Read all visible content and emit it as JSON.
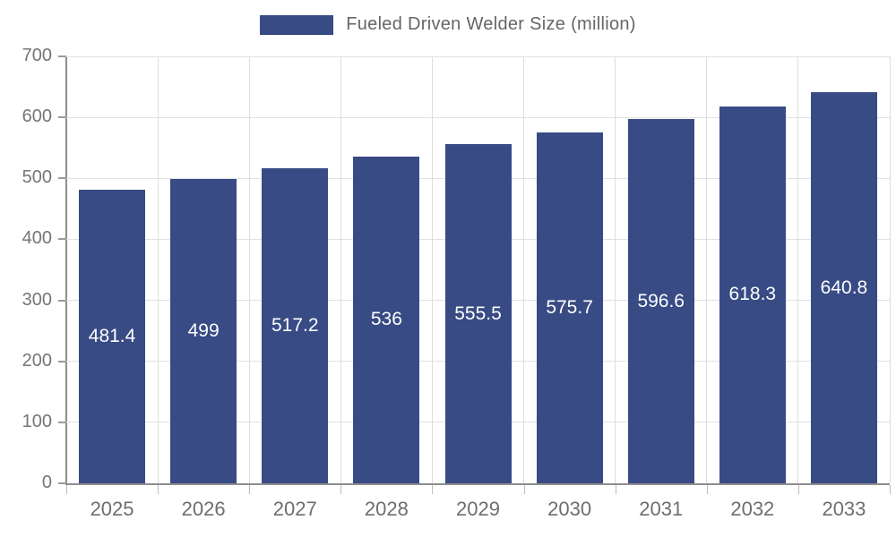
{
  "chart_data": {
    "type": "bar",
    "title": "Fueled Driven Welder Size (million)",
    "categories": [
      "2025",
      "2026",
      "2027",
      "2028",
      "2029",
      "2030",
      "2031",
      "2032",
      "2033"
    ],
    "series": [
      {
        "name": "Fueled Driven Welder Size (million)",
        "values": [
          481.4,
          499,
          517.2,
          536,
          555.5,
          575.7,
          596.6,
          618.3,
          640.8
        ]
      }
    ],
    "xlabel": "",
    "ylabel": "",
    "ylim": [
      0,
      700
    ],
    "yticks": [
      0,
      100,
      200,
      300,
      400,
      500,
      600,
      700
    ],
    "grid": true,
    "legend_position": "top-center",
    "colors": {
      "bar": "#384b84",
      "value_label": "#ffffff",
      "axis_line": "#8e8e8e",
      "gridline": "#e1e1e4",
      "tick_text": "#757575",
      "legend_text": "#666666"
    }
  }
}
